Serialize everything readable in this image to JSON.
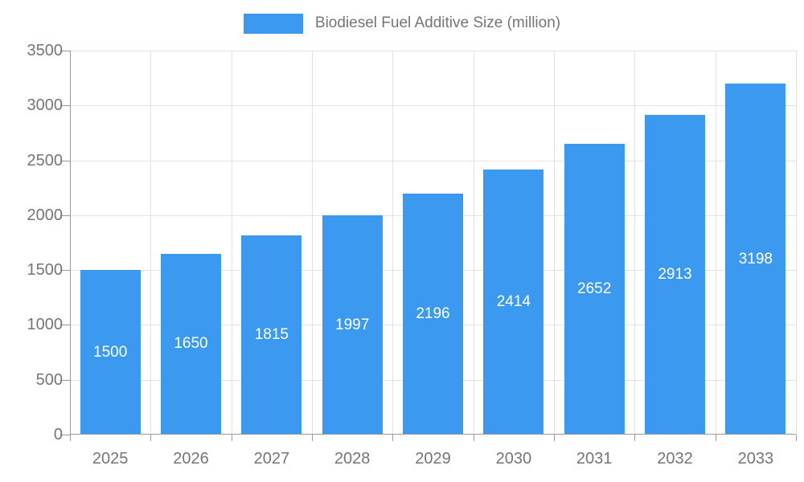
{
  "legend": {
    "label": "Biodiesel Fuel Additive Size (million)"
  },
  "chart_data": {
    "type": "bar",
    "title": "Biodiesel Fuel Additive Size (million)",
    "series_name": "Biodiesel Fuel Additive Size (million)",
    "categories": [
      "2025",
      "2026",
      "2027",
      "2028",
      "2029",
      "2030",
      "2031",
      "2032",
      "2033"
    ],
    "values": [
      1500,
      1650,
      1815,
      1997,
      2196,
      2414,
      2652,
      2913,
      3198
    ],
    "xlabel": "",
    "ylabel": "",
    "ylim": [
      0,
      3500
    ],
    "ytick_step": 500,
    "ytick_labels": [
      "0",
      "500",
      "1000",
      "1500",
      "2000",
      "2500",
      "3000",
      "3500"
    ],
    "grid": true,
    "legend_position": "top",
    "bar_color": "#3b99f0",
    "bar_label_color": "#ffffff",
    "axis_line_color": "#999999",
    "gridline_color": "#e2e2e2",
    "tick_text_color": "#757575"
  }
}
